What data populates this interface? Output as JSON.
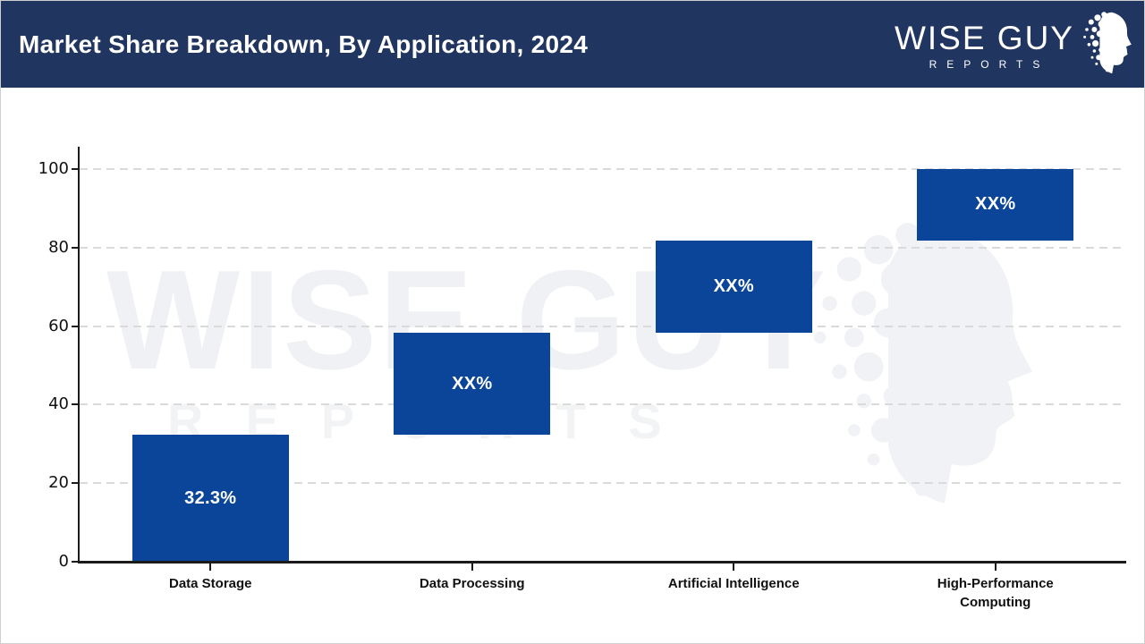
{
  "header": {
    "title": "Market Share Breakdown, By Application, 2024",
    "bg_color": "#213561",
    "logo": {
      "line1": "WISE GUY",
      "line2": "REPORTS",
      "icon": "dotted-head-icon"
    }
  },
  "watermark": {
    "line1": "WISE GUY",
    "line2": "REPORTS",
    "icon": "dotted-head-icon"
  },
  "chart_data": {
    "type": "bar",
    "subtype": "waterfall-floating-bars",
    "title": "Market Share Breakdown, By Application, 2024",
    "categories": [
      "Data Storage",
      "Data Processing",
      "Artificial Intelligence",
      "High-Performance Computing"
    ],
    "series": [
      {
        "name": "Market Share %",
        "segments": [
          {
            "category": "Data Storage",
            "start": 0,
            "end": 32.3,
            "label": "32.3%"
          },
          {
            "category": "Data Processing",
            "start": 32.3,
            "end": 58.3,
            "label": "XX%"
          },
          {
            "category": "Artificial Intelligence",
            "start": 58.3,
            "end": 81.8,
            "label": "XX%"
          },
          {
            "category": "High-Performance Computing",
            "start": 81.8,
            "end": 100,
            "label": "XX%"
          }
        ]
      }
    ],
    "yticks": [
      0,
      20,
      40,
      60,
      80,
      100
    ],
    "ylim": [
      0,
      105
    ],
    "xlabel": "",
    "ylabel": "",
    "grid": "horizontal-dashed",
    "legend": "none",
    "bar_color": "#0B4599",
    "bar_label_color": "#ffffff",
    "axis_color": "#1b1b1b",
    "gridline_color": "#dadada"
  }
}
